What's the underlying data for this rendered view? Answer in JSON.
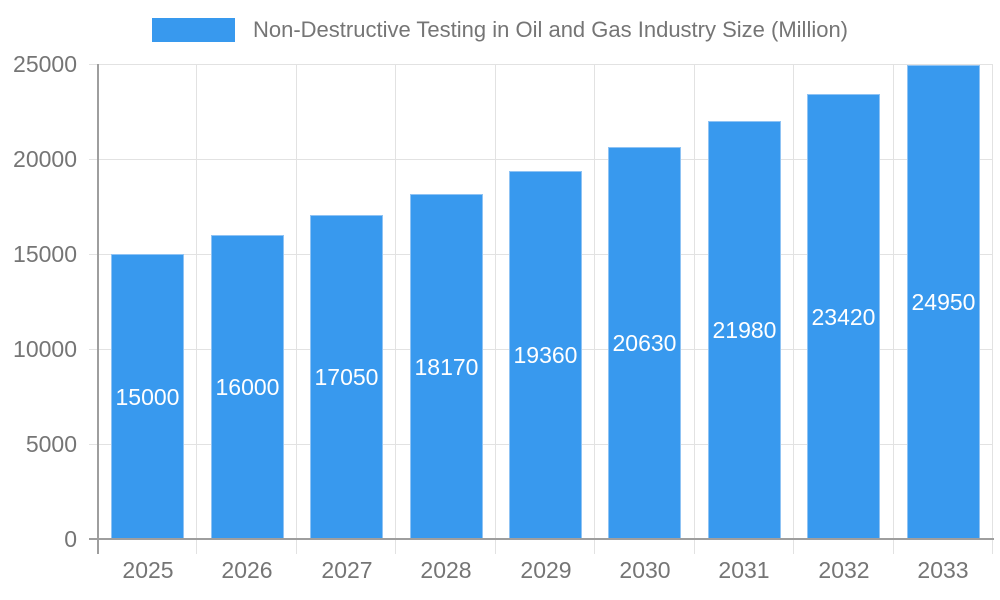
{
  "chart_data": {
    "type": "bar",
    "title": "Non-Destructive Testing in Oil and Gas Industry Size (Million)",
    "legend": {
      "position": "top",
      "label": "Non-Destructive Testing in Oil and Gas Industry Size (Million)"
    },
    "categories": [
      "2025",
      "2026",
      "2027",
      "2028",
      "2029",
      "2030",
      "2031",
      "2032",
      "2033"
    ],
    "values": [
      15000,
      16000,
      17050,
      18170,
      19360,
      20630,
      21980,
      23420,
      24950
    ],
    "value_labels": [
      "15000",
      "16000",
      "17050",
      "18170",
      "19360",
      "20630",
      "21980",
      "23420",
      "24950"
    ],
    "value_labels_position": "inside-center",
    "xlabel": "",
    "ylabel": "",
    "ylim": [
      0,
      25000
    ],
    "yticks": [
      0,
      5000,
      10000,
      15000,
      20000,
      25000
    ],
    "ytick_labels": [
      "0",
      "5000",
      "10000",
      "15000",
      "20000",
      "25000"
    ],
    "grid": true,
    "colors": {
      "bar": "#3899EE",
      "bar_edge": "#8FC3F4",
      "axis_line": "#9e9e9e",
      "grid_line": "#e2e2e2",
      "tick_label": "#757575",
      "legend_label": "#757575",
      "value_label": "#ffffff",
      "background": "#ffffff"
    }
  }
}
